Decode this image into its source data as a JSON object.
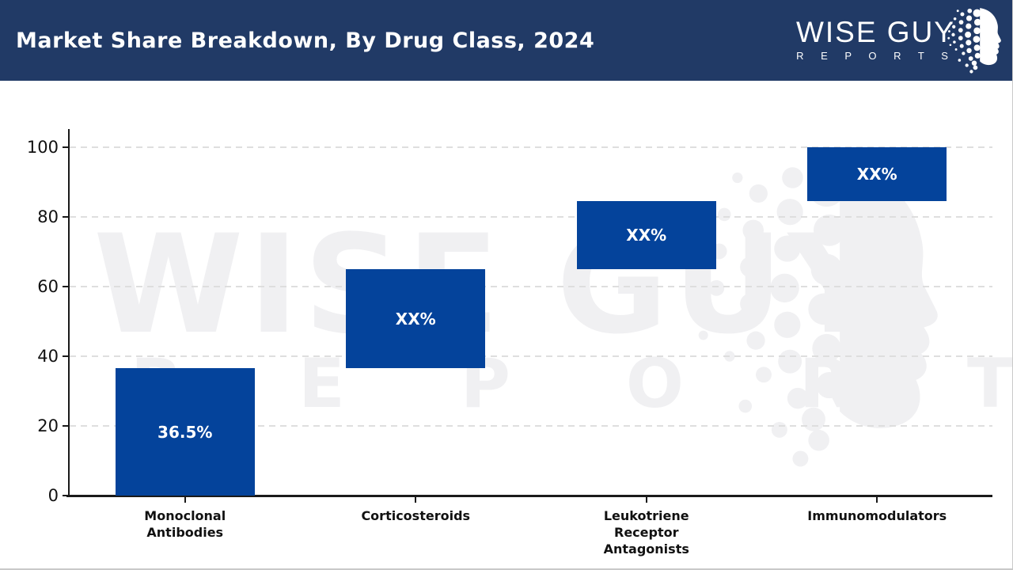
{
  "header": {
    "title": "Market Share Breakdown, By Drug Class, 2024",
    "logo": {
      "line1": "WISE GUY",
      "line2": "R E P O R T S"
    }
  },
  "watermark": {
    "line1": "WISE GUY",
    "line2": "R E P O R T S"
  },
  "colors": {
    "header_bg": "#213a66",
    "bar": "#04439b",
    "grid": "#dedede",
    "axis": "#1a1a1a",
    "bar_label_text": "#ffffff",
    "watermark": "#f0f0f2"
  },
  "chart_data": {
    "type": "bar",
    "subtype": "waterfall",
    "title": "Market Share Breakdown, By Drug Class, 2024",
    "categories": [
      "Monoclonal Antibodies",
      "Corticosteroids",
      "Leukotriene Receptor Antagonists",
      "Immunomodulators"
    ],
    "category_lines": [
      [
        "Monoclonal",
        "Antibodies"
      ],
      [
        "Corticosteroids"
      ],
      [
        "Leukotriene",
        "Receptor",
        "Antagonists"
      ],
      [
        "Immunomodulators"
      ]
    ],
    "segments": [
      {
        "category": "Monoclonal Antibodies",
        "start": 0,
        "end": 36.5,
        "label": "36.5%"
      },
      {
        "category": "Corticosteroids",
        "start": 36.5,
        "end": 65,
        "label": "XX%"
      },
      {
        "category": "Leukotriene Receptor Antagonists",
        "start": 65,
        "end": 84.5,
        "label": "XX%"
      },
      {
        "category": "Immunomodulators",
        "start": 84.5,
        "end": 100,
        "label": "XX%"
      }
    ],
    "xlabel": "",
    "ylabel": "",
    "ylim": [
      0,
      100
    ],
    "yticks": [
      0,
      20,
      40,
      60,
      80,
      100
    ],
    "ytick_labels": [
      "0",
      "20",
      "40",
      "60",
      "80",
      "100"
    ],
    "grid": "horizontal-dashed",
    "legend": "none"
  }
}
